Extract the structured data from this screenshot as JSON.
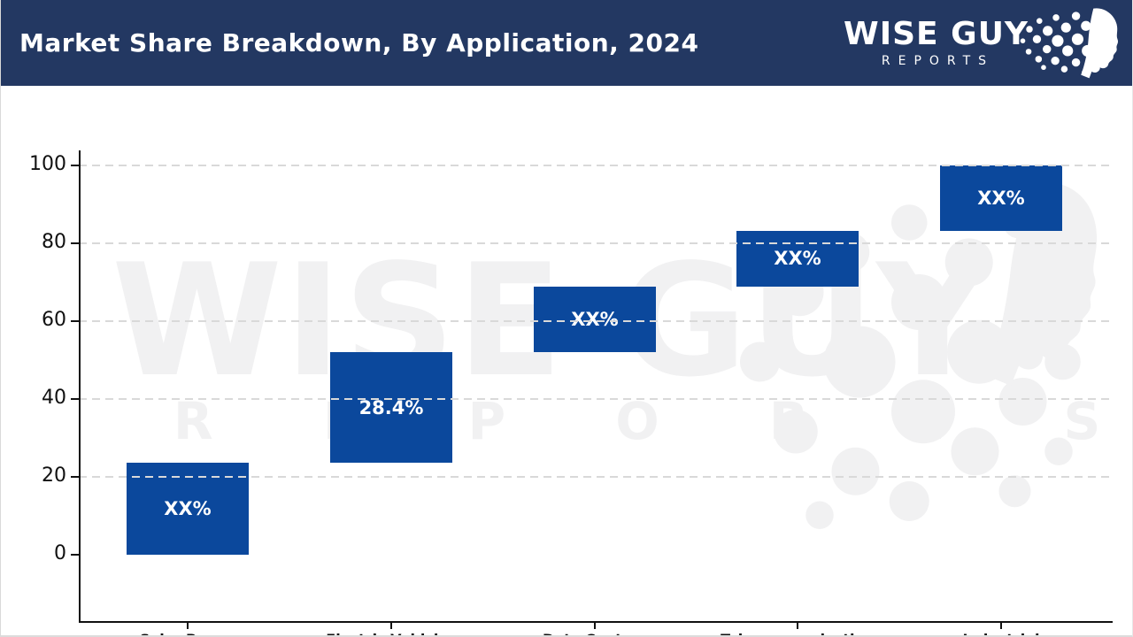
{
  "header": {
    "title": "Market Share Breakdown, By Application, 2024",
    "bg_color": "#233862",
    "logo": {
      "line1": "WISE GUY",
      "line2": "REPORTS"
    }
  },
  "watermark": {
    "line1": "WISE GUY",
    "line2": "R E P O R T S"
  },
  "chart_data": {
    "type": "bar",
    "subtype": "waterfall-floating-bars",
    "title": "Market Share Breakdown, By Application, 2024",
    "categories": [
      "Solar Power Systems",
      "Electric Vehicles",
      "Data Centers",
      "Telecommunication",
      "Industrial Automation"
    ],
    "tick_labels": [
      "Solar Power\nSystems",
      "Electric Vehicles",
      "Data Centers",
      "Telecommunication",
      "Industrial\nAutomation"
    ],
    "segments": [
      {
        "category": "Solar Power Systems",
        "start": 0,
        "end": 23.6,
        "label": "XX%"
      },
      {
        "category": "Electric Vehicles",
        "start": 23.6,
        "end": 52.0,
        "label": "28.4%"
      },
      {
        "category": "Data Centers",
        "start": 52.0,
        "end": 68.9,
        "label": "XX%"
      },
      {
        "category": "Telecommunication",
        "start": 68.9,
        "end": 83.2,
        "label": "XX%"
      },
      {
        "category": "Industrial Automation",
        "start": 83.2,
        "end": 100.0,
        "label": "XX%"
      }
    ],
    "xlabel": "",
    "ylabel": "",
    "ylim": [
      0,
      100
    ],
    "y_ticks": [
      0,
      20,
      40,
      60,
      80,
      100
    ],
    "grid": "horizontal-dashed",
    "bar_color": "#0b489c",
    "bar_label_color": "#ffffff",
    "legend": "none"
  }
}
